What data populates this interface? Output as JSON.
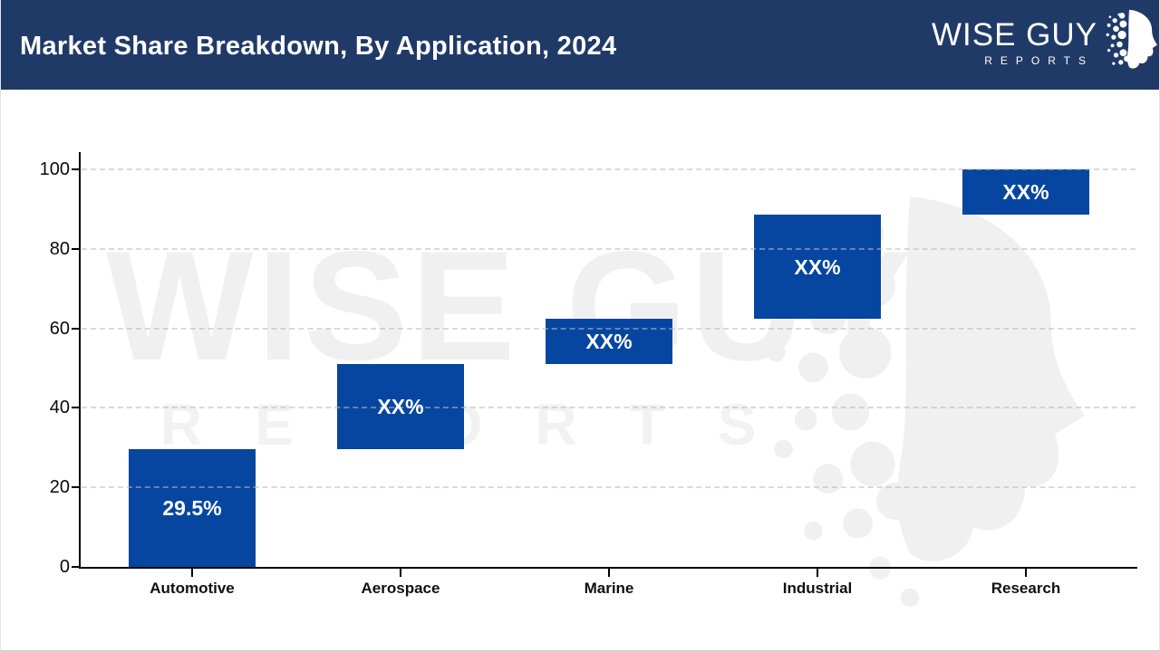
{
  "header": {
    "title": "Market Share Breakdown, By Application, 2024",
    "logo_line1": "WISE GUY",
    "logo_line2": "REPORTS"
  },
  "watermark": {
    "line1": "WISE GUY",
    "line2": "REPORTS"
  },
  "chart_data": {
    "type": "bar",
    "variant": "waterfall",
    "title": "Market Share Breakdown, By Application, 2024",
    "xlabel": "",
    "ylabel": "",
    "ylim": [
      0,
      105
    ],
    "yticks": [
      0,
      20,
      40,
      60,
      80,
      100
    ],
    "grid": "horizontal-dashed",
    "legend": "none",
    "categories": [
      "Automotive",
      "Aerospace",
      "Marine",
      "Industrial",
      "Research"
    ],
    "segments": [
      {
        "category": "Automotive",
        "start": 0,
        "end": 29.5,
        "label": "29.5%"
      },
      {
        "category": "Aerospace",
        "start": 29.5,
        "end": 51,
        "label": "XX%"
      },
      {
        "category": "Marine",
        "start": 51,
        "end": 62.5,
        "label": "XX%"
      },
      {
        "category": "Industrial",
        "start": 62.5,
        "end": 88.5,
        "label": "XX%"
      },
      {
        "category": "Research",
        "start": 88.5,
        "end": 100,
        "label": "XX%"
      }
    ],
    "colors": {
      "bar": "#0646a0",
      "bar_label": "#ffffff",
      "axis": "#000000",
      "grid": "#bdbdbd",
      "header_bg": "#203a68",
      "watermark": "#f0f0f0"
    }
  }
}
